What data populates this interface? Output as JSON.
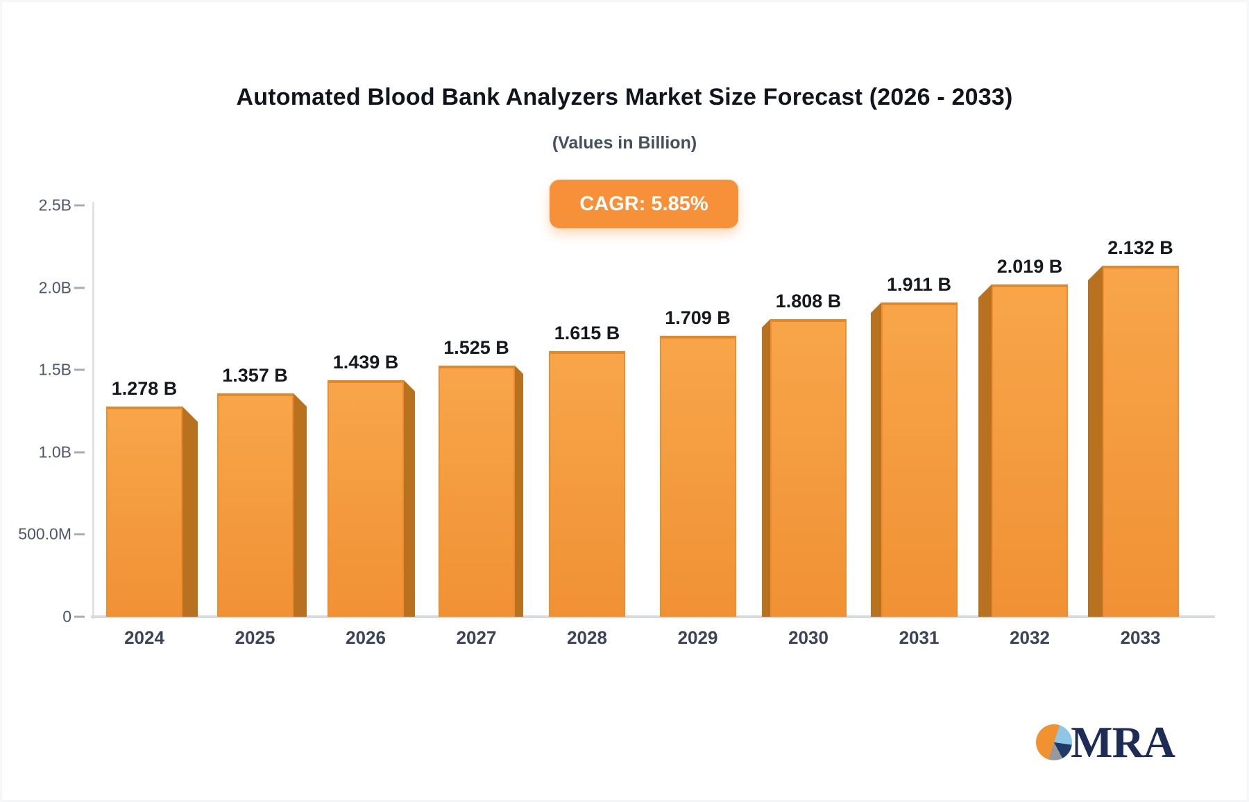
{
  "chart": {
    "title": "Automated Blood Bank Analyzers Market Size Forecast (2026 - 2033)",
    "subtitle": "(Values in Billion)",
    "cagr_label": "CAGR: 5.85%"
  },
  "branding": {
    "name": "MRA"
  },
  "colors": {
    "bar_orange": "#f49a3d",
    "bar_side_dark": "#b7711f",
    "badge_orange": "#f6913a",
    "axis_gray": "#d8dbde",
    "logo_navy": "#1d2b57",
    "logo_light_blue": "#8ec6e6",
    "logo_gray": "#98999b"
  },
  "chart_data": {
    "type": "bar",
    "title": "Automated Blood Bank Analyzers Market Size Forecast (2026 - 2033)",
    "subtitle": "(Values in Billion)",
    "annotation": "CAGR: 5.85%",
    "categories": [
      "2024",
      "2025",
      "2026",
      "2027",
      "2028",
      "2029",
      "2030",
      "2031",
      "2032",
      "2033"
    ],
    "values": [
      1.278,
      1.357,
      1.439,
      1.525,
      1.615,
      1.709,
      1.808,
      1.911,
      2.019,
      2.132
    ],
    "value_labels": [
      "1.278 B",
      "1.357 B",
      "1.439 B",
      "1.525 B",
      "1.615 B",
      "1.709 B",
      "1.808 B",
      "1.911 B",
      "2.019 B",
      "2.132 B"
    ],
    "unit": "Billion USD",
    "yticks": [
      {
        "label": "2.5B",
        "value": 2.5
      },
      {
        "label": "2.0B",
        "value": 2.0
      },
      {
        "label": "1.5B",
        "value": 1.5
      },
      {
        "label": "1.0B",
        "value": 1.0
      },
      {
        "label": "500.0M",
        "value": 0.5
      },
      {
        "label": "0",
        "value": 0
      }
    ],
    "ylim": [
      0,
      2.5
    ],
    "grid": false,
    "legend": "none",
    "style_3d": "bar sides shaded away from chart center"
  }
}
